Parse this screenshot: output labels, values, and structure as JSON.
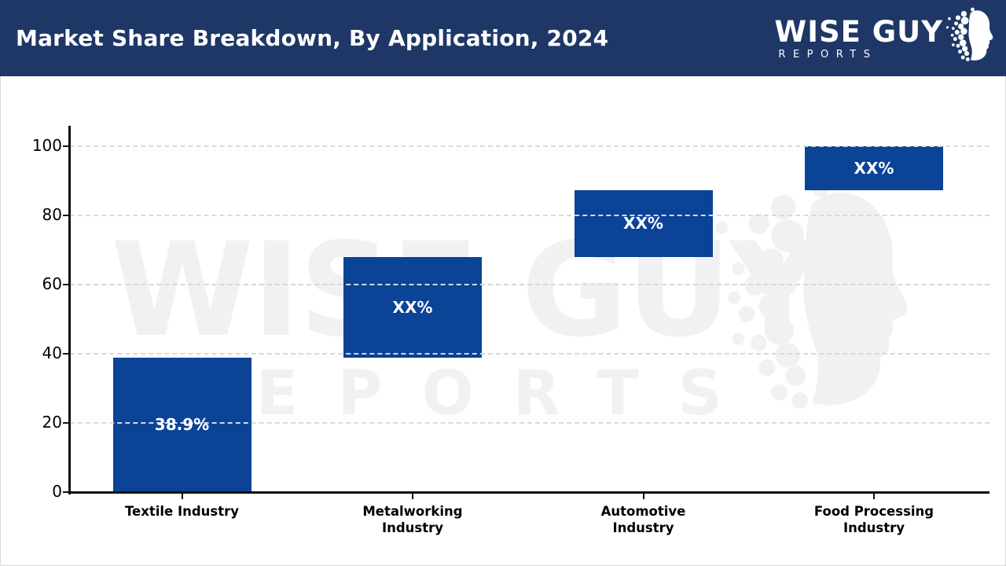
{
  "header": {
    "title": "Market Share Breakdown, By Application, 2024",
    "brand": {
      "line1": "WISE GUY",
      "line2": "REPORTS"
    }
  },
  "watermark": {
    "line1": "WISE GUY",
    "line2": "REPORTS"
  },
  "chart_data": {
    "type": "bar",
    "subtype": "waterfall-floating-bars",
    "title": "Market Share Breakdown, By Application, 2024",
    "categories": [
      "Textile Industry",
      "Metalworking Industry",
      "Automotive Industry",
      "Food Processing Industry"
    ],
    "segments": [
      {
        "category": "Textile Industry",
        "category_display": "Textile Industry",
        "start": 0,
        "end": 38.9,
        "label": "38.9%"
      },
      {
        "category": "Metalworking Industry",
        "category_display": "Metalworking\nIndustry",
        "start": 38.9,
        "end": 68.0,
        "label": "XX%"
      },
      {
        "category": "Automotive Industry",
        "category_display": "Automotive\nIndustry",
        "start": 68.0,
        "end": 87.3,
        "label": "XX%"
      },
      {
        "category": "Food Processing Industry",
        "category_display": "Food Processing\nIndustry",
        "start": 87.3,
        "end": 100.0,
        "label": "XX%"
      }
    ],
    "yticks": [
      0,
      20,
      40,
      60,
      80,
      100
    ],
    "ylim": [
      0,
      106
    ],
    "xlabel": "",
    "ylabel": "",
    "legend": null,
    "grid": {
      "horizontal": true,
      "style": "dashed"
    },
    "colors": {
      "bar": "#0b4397",
      "bar_label": "#ffffff",
      "grid": "#d9d9d9",
      "axis": "#111111",
      "header_bg": "#1f3766",
      "watermark": "#f1f1f1"
    }
  }
}
